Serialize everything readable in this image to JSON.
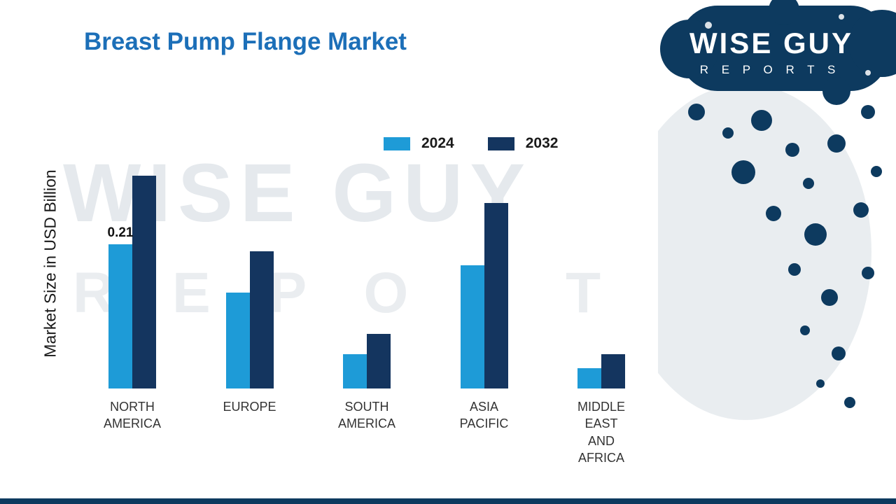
{
  "page": {
    "title": "Breast Pump Flange Market",
    "title_color": "#1c6fb8",
    "footer_bar_color": "#0d3a5f"
  },
  "logo": {
    "line1": "WISE GUY",
    "line2": "R E P O R T S",
    "bg_color": "#0d3a5f",
    "text_color": "#ffffff"
  },
  "watermark": {
    "line1": "WISE GUY",
    "line2": "R E P O R T S"
  },
  "chart_data": {
    "type": "bar",
    "title": "Breast Pump Flange Market",
    "ylabel": "Market Size in USD Billion",
    "xlabel": "",
    "ylim": [
      0,
      0.35
    ],
    "grid": false,
    "legend_position": "top",
    "categories": [
      "NORTH AMERICA",
      "EUROPE",
      "SOUTH AMERICA",
      "ASIA PACIFIC",
      "MIDDLE EAST AND AFRICA"
    ],
    "category_lines": [
      "NORTH\nAMERICA",
      "EUROPE",
      "SOUTH\nAMERICA",
      "ASIA\nPACIFIC",
      "MIDDLE\nEAST\nAND\nAFRICA"
    ],
    "series": [
      {
        "name": "2024",
        "color": "#1e9bd7",
        "values": [
          0.21,
          0.14,
          0.05,
          0.18,
          0.03
        ]
      },
      {
        "name": "2032",
        "color": "#14355f",
        "values": [
          0.31,
          0.2,
          0.08,
          0.27,
          0.05
        ]
      }
    ],
    "annotations": [
      {
        "series": "2024",
        "category": "NORTH AMERICA",
        "text": "0.21"
      }
    ]
  }
}
